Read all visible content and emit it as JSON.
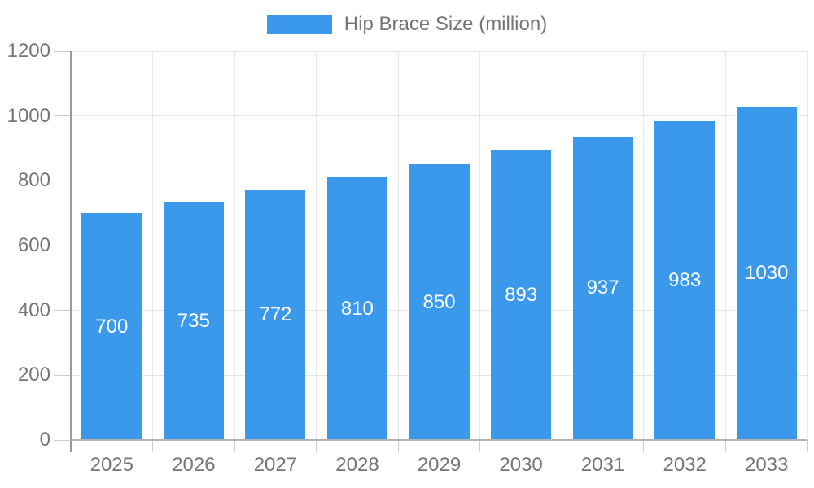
{
  "chart_data": {
    "type": "bar",
    "title": "",
    "series_name": "Hip Brace Size (million)",
    "categories": [
      "2025",
      "2026",
      "2027",
      "2028",
      "2029",
      "2030",
      "2031",
      "2032",
      "2033"
    ],
    "values": [
      700,
      735,
      772,
      810,
      850,
      893,
      937,
      983,
      1030
    ],
    "xlabel": "",
    "ylabel": "",
    "ylim": [
      0,
      1200
    ],
    "yticks": [
      0,
      200,
      400,
      600,
      800,
      1000,
      1200
    ],
    "grid": true,
    "legend_position": "top-center",
    "bar_labels_inside": true,
    "colors": {
      "bar": "#3b99ec",
      "bar_label": "#ffffff",
      "axis_text": "#757575",
      "grid_line": "#e6e6e6",
      "tick_line": "#cccccc",
      "axis_line_y": "#9a9a9a",
      "axis_line_x": "#b3b3b3",
      "background": "#ffffff"
    }
  }
}
